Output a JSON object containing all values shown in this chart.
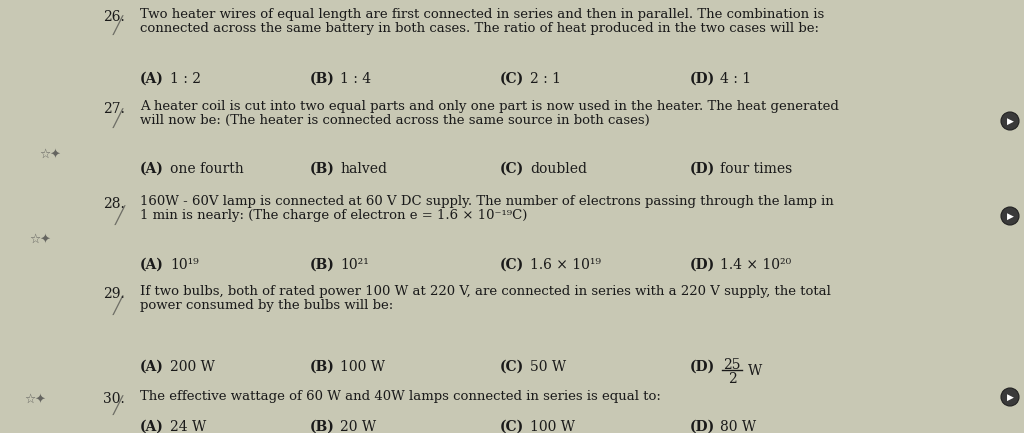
{
  "background_color": "#c8c8b4",
  "text_color": "#1a1a1a",
  "questions": [
    {
      "number": "26.",
      "question_lines": [
        "Two heater wires of equal length are first connected in series and then in parallel. The combination is",
        "connected across the same battery in both cases. The ratio of heat produced in the two cases will be:"
      ],
      "options": [
        {
          "label": "(A)",
          "text": "1 : 2"
        },
        {
          "label": "(B)",
          "text": "1 : 4"
        },
        {
          "label": "(C)",
          "text": "2 : 1"
        },
        {
          "label": "(D)",
          "text": "4 : 1"
        }
      ],
      "has_arrow": false
    },
    {
      "number": "27.",
      "question_lines": [
        "A heater coil is cut into two equal parts and only one part is now used in the heater. The heat generated",
        "will now be: (The heater is connected across the same source in both cases)"
      ],
      "options": [
        {
          "label": "(A)",
          "text": "one fourth"
        },
        {
          "label": "(B)",
          "text": "halved"
        },
        {
          "label": "(C)",
          "text": "doubled"
        },
        {
          "label": "(D)",
          "text": "four times"
        }
      ],
      "has_arrow": true
    },
    {
      "number": "28.",
      "question_lines": [
        "160W - 60V lamp is connected at 60 V DC supply. The number of electrons passing through the lamp in",
        "1 min is nearly: (The charge of electron e = 1.6 × 10⁻¹⁹C)"
      ],
      "options": [
        {
          "label": "(A)",
          "text": "10¹⁹"
        },
        {
          "label": "(B)",
          "text": "10²¹"
        },
        {
          "label": "(C)",
          "text": "1.6 × 10¹⁹"
        },
        {
          "label": "(D)",
          "text": "1.4 × 10²⁰"
        }
      ],
      "has_arrow": true
    },
    {
      "number": "29.",
      "question_lines": [
        "If two bulbs, both of rated power 100 W at 220 V, are connected in series with a 220 V supply, the total",
        "power consumed by the bulbs will be:"
      ],
      "options": [
        {
          "label": "(A)",
          "text": "200 W"
        },
        {
          "label": "(B)",
          "text": "100 W"
        },
        {
          "label": "(C)",
          "text": "50 W"
        },
        {
          "label": "(D)",
          "text": "25/2 W",
          "fraction": true
        }
      ],
      "has_arrow": false
    },
    {
      "number": "30.",
      "question_lines": [
        "The effective wattage of 60 W and 40W lamps connected in series is equal to:"
      ],
      "options": [
        {
          "label": "(A)",
          "text": "24 W"
        },
        {
          "label": "(B)",
          "text": "20 W"
        },
        {
          "label": "(C)",
          "text": "100 W"
        },
        {
          "label": "(D)",
          "text": "80 W"
        }
      ],
      "has_arrow": true
    }
  ],
  "font_size_question": 9.5,
  "font_size_options": 10.0,
  "font_size_number": 10.0
}
